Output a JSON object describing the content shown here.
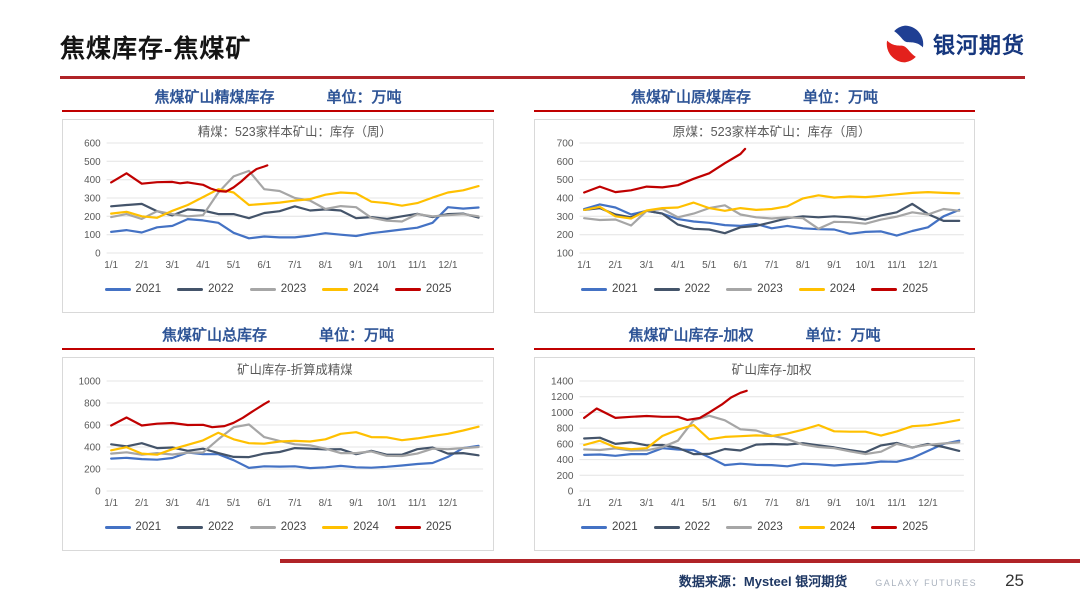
{
  "page": {
    "title": "焦煤库存-焦煤矿",
    "logo_text": "银河期货",
    "footer": {
      "source": "数据来源：Mysteel 银河期货",
      "brand": "GALAXY FUTURES",
      "page_number": "25"
    },
    "colors": {
      "accent_red": "#B02328",
      "panel_rule_red": "#C00000",
      "header_blue": "#2E5496",
      "series_2021": "#4472C4",
      "series_2022": "#44546A",
      "series_2023": "#A6A6A6",
      "series_2024": "#FFC000",
      "series_2025": "#C00000"
    }
  },
  "chart_data": [
    {
      "type": "line",
      "panel_title": "焦煤矿山精煤库存",
      "unit_label": "单位：万吨",
      "title": "精煤：523家样本矿山：库存（周）",
      "ylim": [
        0,
        600
      ],
      "yticks": [
        0,
        100,
        200,
        300,
        400,
        500,
        600
      ],
      "xlim": [
        0.85,
        13.15
      ],
      "x_labels": [
        "1/1",
        "2/1",
        "3/1",
        "4/1",
        "5/1",
        "6/1",
        "7/1",
        "8/1",
        "9/1",
        "10/1",
        "11/1",
        "12/1"
      ],
      "grid": true,
      "legend_position": "bottom",
      "series": [
        {
          "name": "2021",
          "color": "#4472C4",
          "x_start": 1,
          "x_step": 0.5,
          "values": [
            115,
            125,
            112,
            140,
            148,
            185,
            178,
            165,
            110,
            80,
            90,
            85,
            85,
            95,
            108,
            100,
            93,
            108,
            118,
            128,
            138,
            165,
            250,
            242,
            248
          ]
        },
        {
          "name": "2022",
          "color": "#44546A",
          "x_start": 1,
          "x_step": 0.5,
          "values": [
            255,
            262,
            268,
            228,
            205,
            238,
            232,
            212,
            212,
            190,
            218,
            228,
            255,
            232,
            238,
            232,
            190,
            196,
            186,
            200,
            214,
            196,
            212,
            215,
            193
          ]
        },
        {
          "name": "2023",
          "color": "#A6A6A6",
          "x_start": 1,
          "x_step": 0.5,
          "values": [
            196,
            212,
            186,
            228,
            212,
            200,
            206,
            330,
            418,
            448,
            348,
            338,
            300,
            286,
            240,
            256,
            250,
            192,
            176,
            172,
            212,
            200,
            206,
            212,
            200
          ]
        },
        {
          "name": "2024",
          "color": "#FFC000",
          "x_start": 1,
          "x_step": 0.5,
          "values": [
            215,
            225,
            200,
            192,
            230,
            262,
            305,
            348,
            330,
            262,
            268,
            275,
            286,
            294,
            318,
            330,
            325,
            280,
            272,
            258,
            272,
            302,
            330,
            342,
            365
          ]
        },
        {
          "name": "2025",
          "color": "#C00000",
          "x": [
            1,
            1.5,
            2,
            2.5,
            3,
            3.25,
            3.5,
            4,
            4.25,
            4.5,
            4.75,
            5,
            5.25,
            5.5,
            5.75,
            6,
            6.1
          ],
          "values": [
            385,
            435,
            378,
            386,
            388,
            380,
            385,
            372,
            352,
            338,
            335,
            358,
            390,
            428,
            458,
            472,
            478
          ]
        }
      ]
    },
    {
      "type": "line",
      "panel_title": "焦煤矿山原煤库存",
      "unit_label": "单位：万吨",
      "title": "原煤：523家样本矿山：库存（周）",
      "ylim": [
        100,
        700
      ],
      "yticks": [
        100,
        200,
        300,
        400,
        500,
        600,
        700
      ],
      "xlim": [
        0.85,
        13.15
      ],
      "x_labels": [
        "1/1",
        "2/1",
        "3/1",
        "4/1",
        "5/1",
        "6/1",
        "7/1",
        "8/1",
        "9/1",
        "10/1",
        "11/1",
        "12/1"
      ],
      "grid": true,
      "legend_position": "bottom",
      "series": [
        {
          "name": "2021",
          "color": "#4472C4",
          "x_start": 1,
          "x_step": 0.5,
          "values": [
            340,
            365,
            348,
            310,
            330,
            315,
            285,
            272,
            265,
            252,
            248,
            258,
            235,
            248,
            235,
            230,
            228,
            205,
            215,
            218,
            195,
            220,
            240,
            300,
            335
          ]
        },
        {
          "name": "2022",
          "color": "#44546A",
          "x_start": 1,
          "x_step": 0.5,
          "values": [
            335,
            345,
            310,
            295,
            330,
            315,
            255,
            232,
            228,
            208,
            240,
            248,
            268,
            290,
            300,
            295,
            300,
            295,
            282,
            305,
            322,
            368,
            312,
            275,
            275
          ]
        },
        {
          "name": "2023",
          "color": "#A6A6A6",
          "x_start": 1,
          "x_step": 0.5,
          "values": [
            290,
            280,
            283,
            250,
            330,
            340,
            295,
            315,
            345,
            360,
            310,
            295,
            288,
            295,
            290,
            232,
            270,
            268,
            260,
            282,
            298,
            322,
            310,
            340,
            330
          ]
        },
        {
          "name": "2024",
          "color": "#FFC000",
          "x_start": 1,
          "x_step": 0.5,
          "values": [
            335,
            352,
            300,
            288,
            332,
            345,
            348,
            375,
            345,
            330,
            345,
            335,
            340,
            355,
            398,
            415,
            402,
            408,
            405,
            412,
            420,
            428,
            432,
            428,
            425
          ]
        },
        {
          "name": "2025",
          "color": "#C00000",
          "x": [
            1,
            1.5,
            2,
            2.5,
            3,
            3.5,
            4,
            4.5,
            5,
            5.5,
            6,
            6.15
          ],
          "values": [
            430,
            462,
            432,
            442,
            462,
            458,
            470,
            505,
            535,
            590,
            640,
            668
          ]
        }
      ]
    },
    {
      "type": "line",
      "panel_title": "焦煤矿山总库存",
      "unit_label": "单位：万吨",
      "title": "矿山库存-折算成精煤",
      "ylim": [
        0,
        1000
      ],
      "yticks": [
        0,
        200,
        400,
        600,
        800,
        1000
      ],
      "xlim": [
        0.85,
        13.15
      ],
      "x_labels": [
        "1/1",
        "2/1",
        "3/1",
        "4/1",
        "5/1",
        "6/1",
        "7/1",
        "8/1",
        "9/1",
        "10/1",
        "11/1",
        "12/1"
      ],
      "grid": true,
      "legend_position": "bottom",
      "series": [
        {
          "name": "2021",
          "color": "#4472C4",
          "x_start": 1,
          "x_step": 0.5,
          "values": [
            295,
            302,
            290,
            285,
            300,
            350,
            335,
            335,
            280,
            210,
            225,
            222,
            225,
            208,
            215,
            228,
            215,
            212,
            220,
            232,
            245,
            255,
            310,
            390,
            410
          ]
        },
        {
          "name": "2022",
          "color": "#44546A",
          "x_start": 1,
          "x_step": 0.5,
          "values": [
            425,
            405,
            435,
            390,
            395,
            365,
            385,
            345,
            310,
            308,
            340,
            355,
            390,
            385,
            378,
            380,
            335,
            365,
            330,
            330,
            380,
            395,
            340,
            345,
            325
          ]
        },
        {
          "name": "2023",
          "color": "#A6A6A6",
          "x_start": 1,
          "x_step": 0.5,
          "values": [
            340,
            352,
            330,
            345,
            332,
            348,
            350,
            470,
            580,
            605,
            490,
            455,
            425,
            415,
            385,
            345,
            345,
            360,
            320,
            318,
            340,
            385,
            380,
            390,
            400
          ]
        },
        {
          "name": "2024",
          "color": "#FFC000",
          "x_start": 1,
          "x_step": 0.5,
          "values": [
            370,
            398,
            340,
            330,
            380,
            420,
            460,
            530,
            470,
            435,
            430,
            450,
            455,
            450,
            470,
            520,
            535,
            490,
            488,
            462,
            478,
            500,
            520,
            550,
            585
          ]
        },
        {
          "name": "2025",
          "color": "#C00000",
          "x": [
            1,
            1.5,
            2,
            2.5,
            3,
            3.5,
            4,
            4.3,
            4.7,
            5,
            5.3,
            5.6,
            6,
            6.15
          ],
          "values": [
            595,
            668,
            595,
            612,
            618,
            600,
            602,
            580,
            590,
            620,
            665,
            720,
            790,
            815
          ]
        }
      ]
    },
    {
      "type": "line",
      "panel_title": "焦煤矿山库存-加权",
      "unit_label": "单位：万吨",
      "title": "矿山库存-加权",
      "ylim": [
        0,
        1400
      ],
      "yticks": [
        0,
        200,
        400,
        600,
        800,
        1000,
        1200,
        1400
      ],
      "xlim": [
        0.85,
        13.15
      ],
      "x_labels": [
        "1/1",
        "2/1",
        "3/1",
        "4/1",
        "5/1",
        "6/1",
        "7/1",
        "8/1",
        "9/1",
        "10/1",
        "11/1",
        "12/1"
      ],
      "grid": true,
      "legend_position": "bottom",
      "series": [
        {
          "name": "2021",
          "color": "#4472C4",
          "x_start": 1,
          "x_step": 0.5,
          "values": [
            460,
            465,
            448,
            470,
            470,
            545,
            528,
            520,
            430,
            330,
            348,
            332,
            330,
            315,
            348,
            340,
            325,
            338,
            350,
            375,
            372,
            420,
            510,
            600,
            640
          ]
        },
        {
          "name": "2022",
          "color": "#44546A",
          "x_start": 1,
          "x_step": 0.5,
          "values": [
            668,
            678,
            600,
            618,
            582,
            585,
            548,
            470,
            472,
            535,
            515,
            590,
            598,
            592,
            608,
            580,
            555,
            520,
            492,
            580,
            612,
            552,
            598,
            560,
            510
          ]
        },
        {
          "name": "2023",
          "color": "#A6A6A6",
          "x_start": 1,
          "x_step": 0.5,
          "values": [
            530,
            522,
            542,
            515,
            518,
            558,
            640,
            900,
            958,
            900,
            785,
            770,
            705,
            660,
            590,
            560,
            545,
            505,
            470,
            500,
            600,
            555,
            588,
            605,
            620
          ]
        },
        {
          "name": "2024",
          "color": "#FFC000",
          "x_start": 1,
          "x_step": 0.5,
          "values": [
            585,
            640,
            555,
            532,
            545,
            700,
            780,
            840,
            658,
            688,
            698,
            708,
            700,
            730,
            780,
            840,
            760,
            755,
            755,
            705,
            758,
            825,
            838,
            868,
            905
          ]
        },
        {
          "name": "2025",
          "color": "#C00000",
          "x": [
            1,
            1.4,
            2,
            2.5,
            3,
            3.5,
            4,
            4.3,
            4.7,
            5,
            5.4,
            5.7,
            6,
            6.2
          ],
          "values": [
            930,
            1050,
            930,
            945,
            955,
            945,
            945,
            905,
            930,
            1000,
            1100,
            1190,
            1250,
            1275
          ]
        }
      ]
    }
  ]
}
